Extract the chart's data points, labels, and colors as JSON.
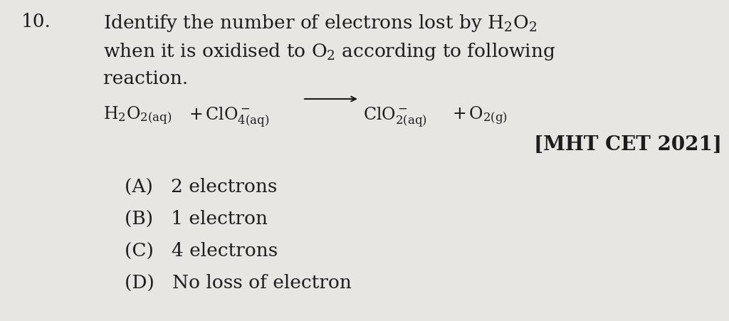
{
  "background_color": "#e8e6e2",
  "text_color": "#1c1c1c",
  "font_size_main": 19,
  "font_size_eq": 17,
  "font_size_exam": 20,
  "font_size_options": 19,
  "question_number": "10.",
  "line1": "Identify the number of electrons lost by $H_2O_2$",
  "line2": "when it is oxidised to $O_2$ according to following",
  "line3": "reaction.",
  "exam_tag": "[MHT CET 2021]",
  "options": [
    "(A)   2 electrons",
    "(B)   1 electron",
    "(C)   4 electrons",
    "(D)   No loss of electron"
  ]
}
